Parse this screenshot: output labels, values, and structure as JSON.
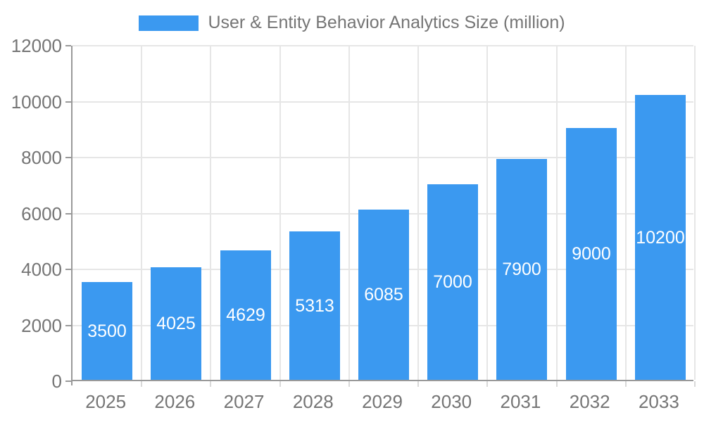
{
  "legend": {
    "label": "User & Entity Behavior Analytics Size (million)",
    "swatch_color": "#3b99f0"
  },
  "chart_data": {
    "type": "bar",
    "title": "User & Entity Behavior Analytics Size (million)",
    "categories": [
      "2025",
      "2026",
      "2027",
      "2028",
      "2029",
      "2030",
      "2031",
      "2032",
      "2033"
    ],
    "values": [
      3500,
      4025,
      4629,
      5313,
      6085,
      7000,
      7900,
      9000,
      10200
    ],
    "xlabel": "",
    "ylabel": "",
    "ylim": [
      0,
      12000
    ],
    "yticks": [
      0,
      2000,
      4000,
      6000,
      8000,
      10000,
      12000
    ],
    "grid": true,
    "legend_position": "top",
    "bar_color": "#3b99f0",
    "bar_label_color": "#ffffff",
    "axis_line_color": "#999999",
    "gridline_color": "#e6e6e6",
    "tick_label_color": "#757575"
  }
}
